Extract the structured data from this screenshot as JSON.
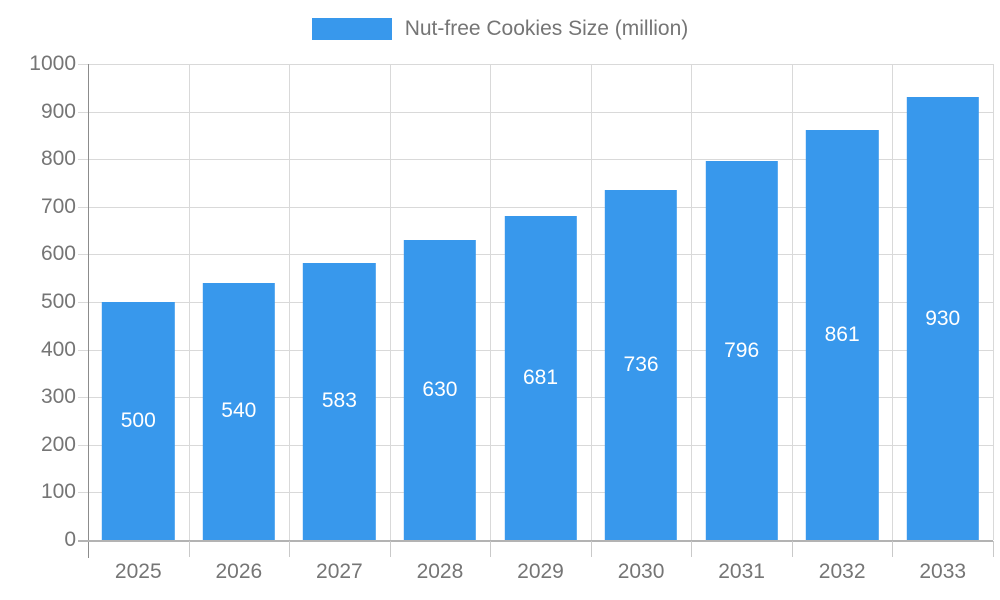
{
  "legend": {
    "label": "Nut-free Cookies Size (million)"
  },
  "chart_data": {
    "type": "bar",
    "title": "Nut-free Cookies Size (million)",
    "categories": [
      "2025",
      "2026",
      "2027",
      "2028",
      "2029",
      "2030",
      "2031",
      "2032",
      "2033"
    ],
    "values": [
      500,
      540,
      583,
      630,
      681,
      736,
      796,
      861,
      930
    ],
    "xlabel": "",
    "ylabel": "",
    "ylim": [
      0,
      1000
    ],
    "ytick_step": 100,
    "yticks": [
      0,
      100,
      200,
      300,
      400,
      500,
      600,
      700,
      800,
      900,
      1000
    ],
    "grid": true,
    "legend_position": "top-center",
    "bar_color": "#3898ec",
    "bar_label_color": "#ffffff",
    "axis_text_color": "#757575",
    "gridline_color": "#d9d9d9",
    "axis_line_color": "#8c8c8c"
  }
}
